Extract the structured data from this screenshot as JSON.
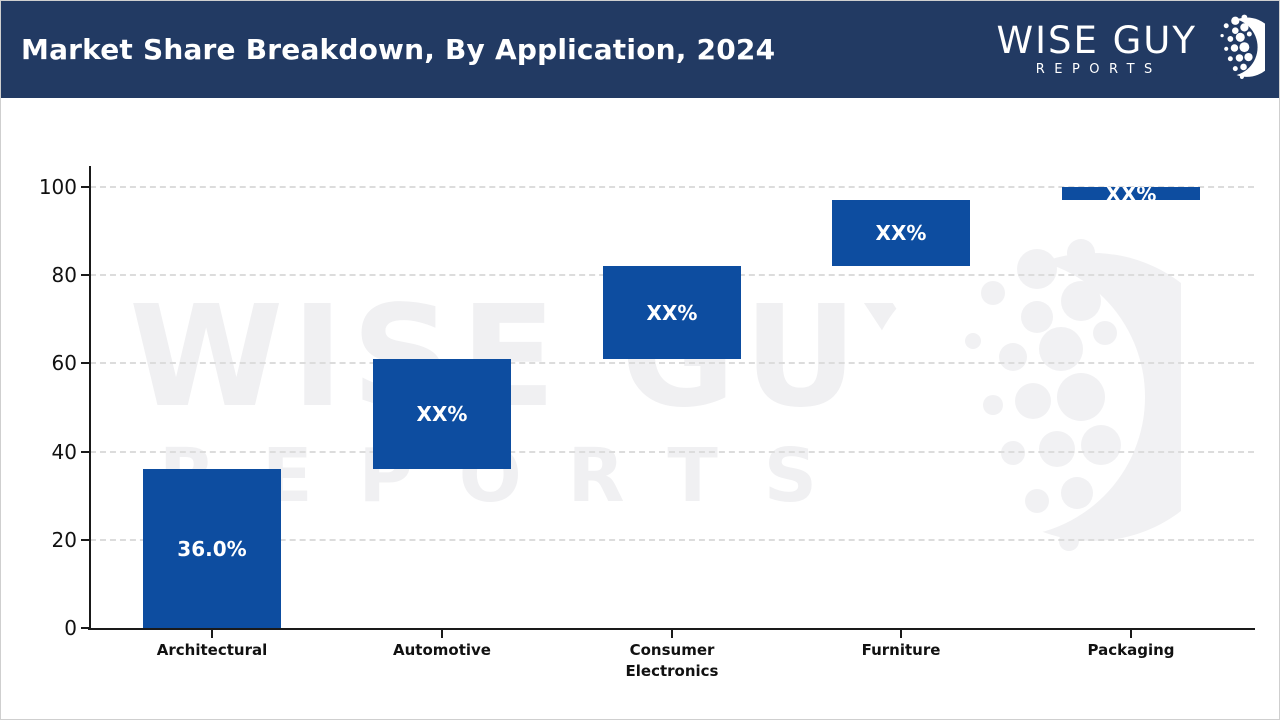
{
  "header": {
    "title": "Market Share Breakdown, By Application, 2024"
  },
  "logo": {
    "line1": "WISE GUY",
    "line2": "REPORTS"
  },
  "watermark": {
    "line1": "WISE GUY",
    "line2": "REPORTS"
  },
  "chart_data": {
    "type": "bar",
    "subtype": "waterfall",
    "title": "Market Share Breakdown, By Application, 2024",
    "categories": [
      "Architectural",
      "Automotive",
      "Consumer Electronics",
      "Furniture",
      "Packaging"
    ],
    "series": [
      {
        "name": "Market share (%)",
        "starts": [
          0,
          36,
          61,
          82,
          97
        ],
        "values": [
          36,
          25,
          21,
          15,
          3
        ]
      }
    ],
    "bar_labels": [
      "36.0%",
      "XX%",
      "XX%",
      "XX%",
      "XX%"
    ],
    "xlabel": "",
    "ylabel": "",
    "ylim": [
      0,
      100
    ],
    "yticks": [
      0,
      20,
      40,
      60,
      80,
      100
    ],
    "grid": "horizontal-dashed",
    "legend": "none",
    "bar_color": "#0d4da0",
    "bar_label_color": "#ffffff"
  },
  "colors": {
    "header_bg": "#223a63",
    "axis": "#1a1a1a",
    "gridline": "#dcdcdc",
    "watermark": "#f0f0f2"
  }
}
